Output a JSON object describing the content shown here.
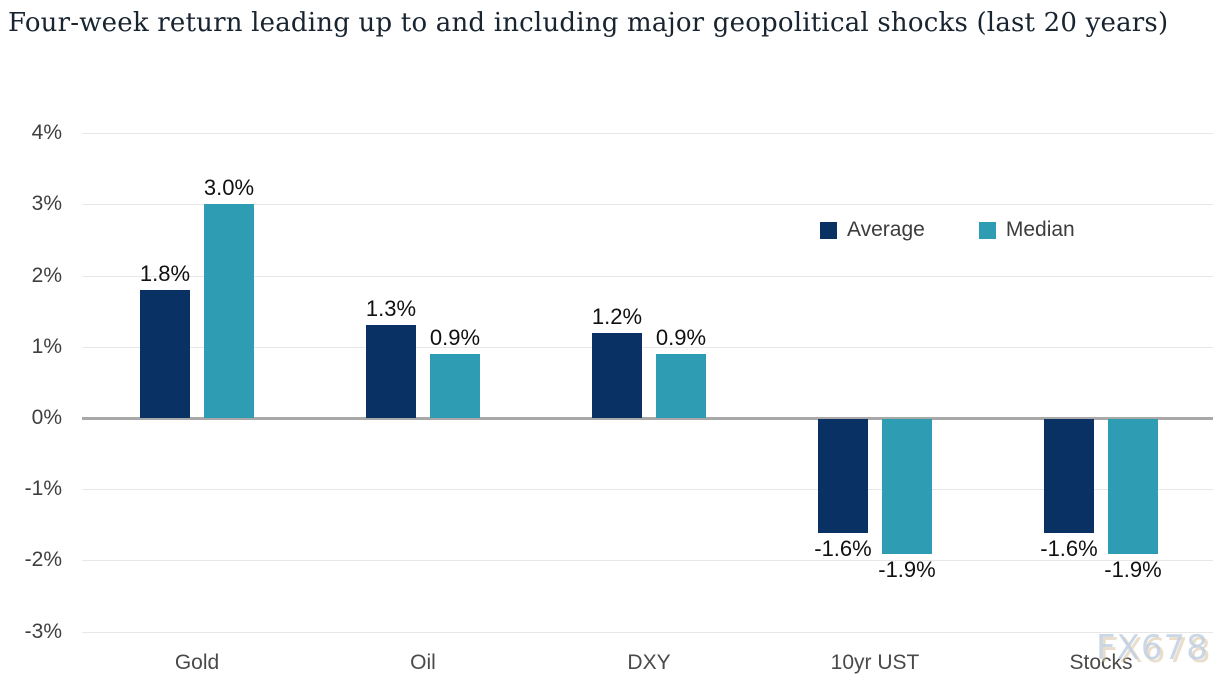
{
  "chart_data": {
    "type": "bar",
    "title": "Four-week return leading up to and including major geopolitical shocks (last 20 years)",
    "categories": [
      "Gold",
      "Oil",
      "DXY",
      "10yr UST",
      "Stocks"
    ],
    "series": [
      {
        "name": "Average",
        "color": "#0a3164",
        "values": [
          1.8,
          1.3,
          1.2,
          -1.6,
          -1.6
        ],
        "labels": [
          "1.8%",
          "1.3%",
          "1.2%",
          "-1.6%",
          "-1.6%"
        ]
      },
      {
        "name": "Median",
        "color": "#2e9cb2",
        "values": [
          3.0,
          0.9,
          0.9,
          -1.9,
          -1.9
        ],
        "labels": [
          "3.0%",
          "0.9%",
          "0.9%",
          "-1.9%",
          "-1.9%"
        ]
      }
    ],
    "y_axis": {
      "range": [
        -3,
        4
      ],
      "grid": true,
      "ticks": [
        {
          "value": 4,
          "label": "4%"
        },
        {
          "value": 3,
          "label": "3%"
        },
        {
          "value": 2,
          "label": "2%"
        },
        {
          "value": 1,
          "label": "1%"
        },
        {
          "value": 0,
          "label": "0%"
        },
        {
          "value": -1,
          "label": "-1%"
        },
        {
          "value": -2,
          "label": "-2%"
        },
        {
          "value": -3,
          "label": "-3%"
        }
      ]
    },
    "legend": {
      "position": "top-right"
    },
    "colors": {
      "grid": "#e7e7e7",
      "zero_line": "#a8a8a8",
      "title_text": "#182430",
      "axis_label": "#3f3f3f",
      "category_label": "#4a4a4a",
      "data_label": "#111111",
      "legend_text": "#3c3c3c",
      "watermark_fill": "#bfd0e2",
      "watermark_shadow": "#d8c1a0"
    }
  },
  "watermark": {
    "text": "FX678"
  }
}
